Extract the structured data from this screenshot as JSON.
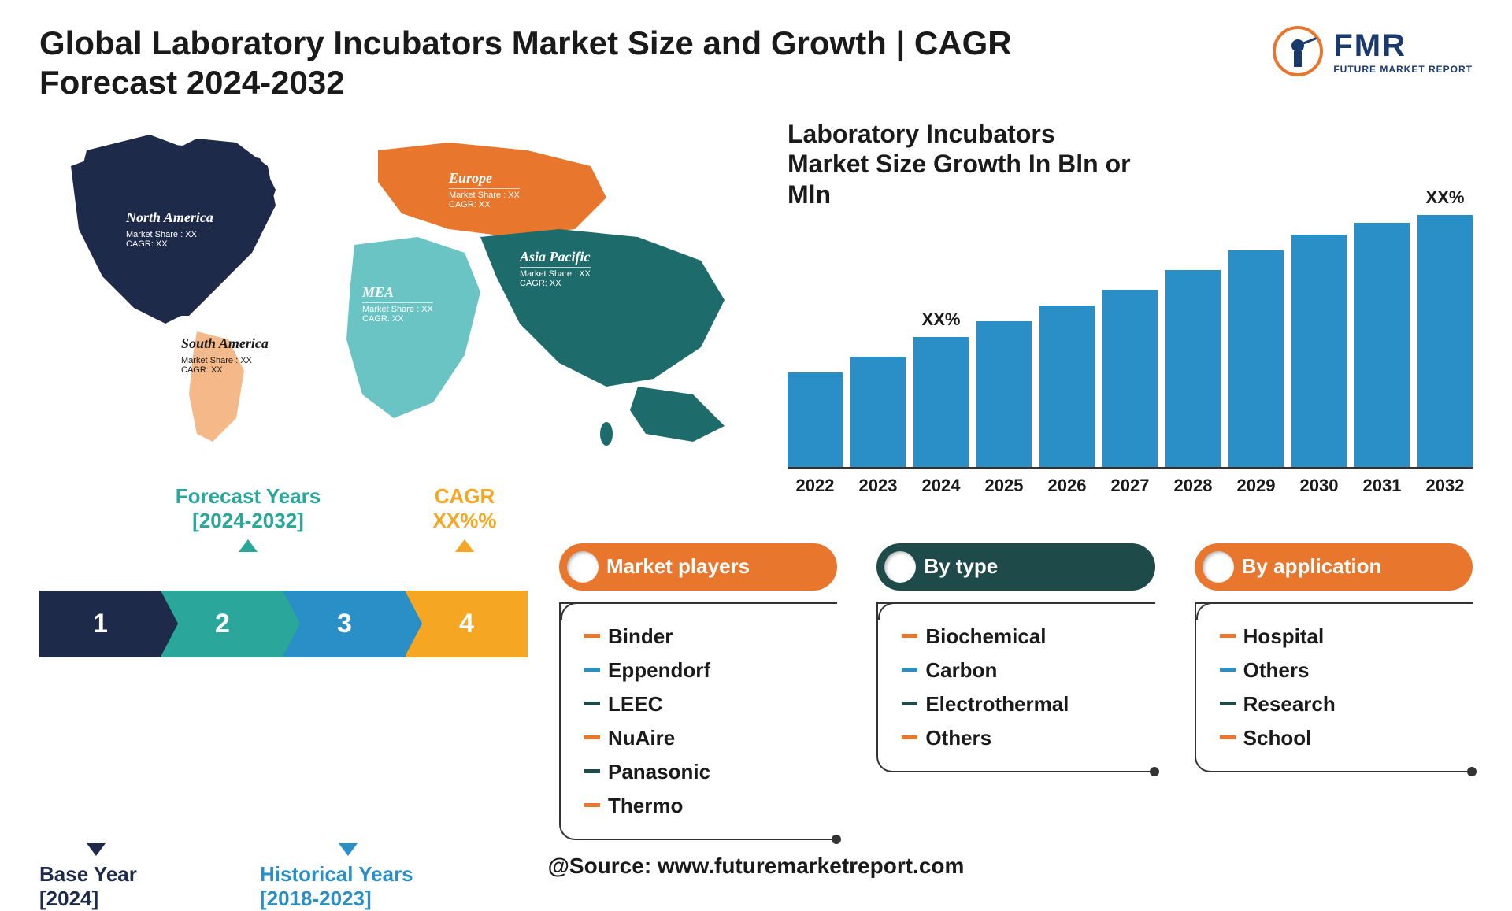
{
  "header": {
    "title": "Global Laboratory Incubators Market Size and Growth | CAGR Forecast 2024-2032",
    "logo_main": "FMR",
    "logo_sub": "FUTURE MARKET REPORT"
  },
  "map": {
    "regions": [
      {
        "name": "North America",
        "share": "Market Share : XX",
        "cagr": "CAGR: XX",
        "color": "#1e2a4a"
      },
      {
        "name": "South America",
        "share": "Market Share : XX",
        "cagr": "CAGR: XX",
        "color": "#f5b889"
      },
      {
        "name": "Europe",
        "share": "Market Share : XX",
        "cagr": "CAGR: XX",
        "color": "#e8762d"
      },
      {
        "name": "MEA",
        "share": "Market Share : XX",
        "cagr": "CAGR: XX",
        "color": "#6bc4c4"
      },
      {
        "name": "Asia Pacific",
        "share": "Market Share : XX",
        "cagr": "CAGR: XX",
        "color": "#1e6b6b"
      }
    ]
  },
  "chart": {
    "title": "Laboratory Incubators Market Size Growth In Bln or Mln",
    "type": "bar",
    "years": [
      "2022",
      "2023",
      "2024",
      "2025",
      "2026",
      "2027",
      "2028",
      "2029",
      "2030",
      "2031",
      "2032"
    ],
    "values": [
      120,
      140,
      165,
      185,
      205,
      225,
      250,
      275,
      295,
      310,
      320
    ],
    "max_height": 320,
    "bar_color": "#2a8fc7",
    "annotations": [
      {
        "index": 2,
        "text": "XX%"
      },
      {
        "index": 10,
        "text": "XX%"
      }
    ],
    "axis_color": "#333333"
  },
  "timeline": {
    "segments": [
      {
        "num": "1",
        "color": "#1e2a4a",
        "label": "Base Year [2024]",
        "pos": "bottom",
        "label_color": "#1e2a4a"
      },
      {
        "num": "2",
        "color": "#2aa69a",
        "label": "Forecast Years [2024-2032]",
        "pos": "top",
        "label_color": "#2aa69a"
      },
      {
        "num": "3",
        "color": "#2a8fc7",
        "label": "Historical Years [2018-2023]",
        "pos": "bottom",
        "label_color": "#2a8fc7"
      },
      {
        "num": "4",
        "color": "#f5a623",
        "label": "CAGR XX%%",
        "pos": "top",
        "label_color": "#f5a623"
      }
    ]
  },
  "pills": [
    {
      "title": "Market players",
      "head_color": "orange",
      "items": [
        {
          "text": "Binder",
          "bullet": "orange"
        },
        {
          "text": "Eppendorf",
          "bullet": "blue"
        },
        {
          "text": "LEEC",
          "bullet": "dark"
        },
        {
          "text": "NuAire",
          "bullet": "orange"
        },
        {
          "text": "Panasonic",
          "bullet": "dark"
        },
        {
          "text": "Thermo",
          "bullet": "orange"
        }
      ]
    },
    {
      "title": "By type",
      "head_color": "dark",
      "items": [
        {
          "text": "Biochemical",
          "bullet": "orange"
        },
        {
          "text": "Carbon",
          "bullet": "blue"
        },
        {
          "text": "Electrothermal",
          "bullet": "dark"
        },
        {
          "text": "Others",
          "bullet": "orange"
        }
      ]
    },
    {
      "title": "By application",
      "head_color": "orange",
      "items": [
        {
          "text": "Hospital",
          "bullet": "orange"
        },
        {
          "text": "Others",
          "bullet": "blue"
        },
        {
          "text": "Research",
          "bullet": "dark"
        },
        {
          "text": "School",
          "bullet": "orange"
        }
      ]
    }
  ],
  "source": "@Source: www.futuremarketreport.com"
}
